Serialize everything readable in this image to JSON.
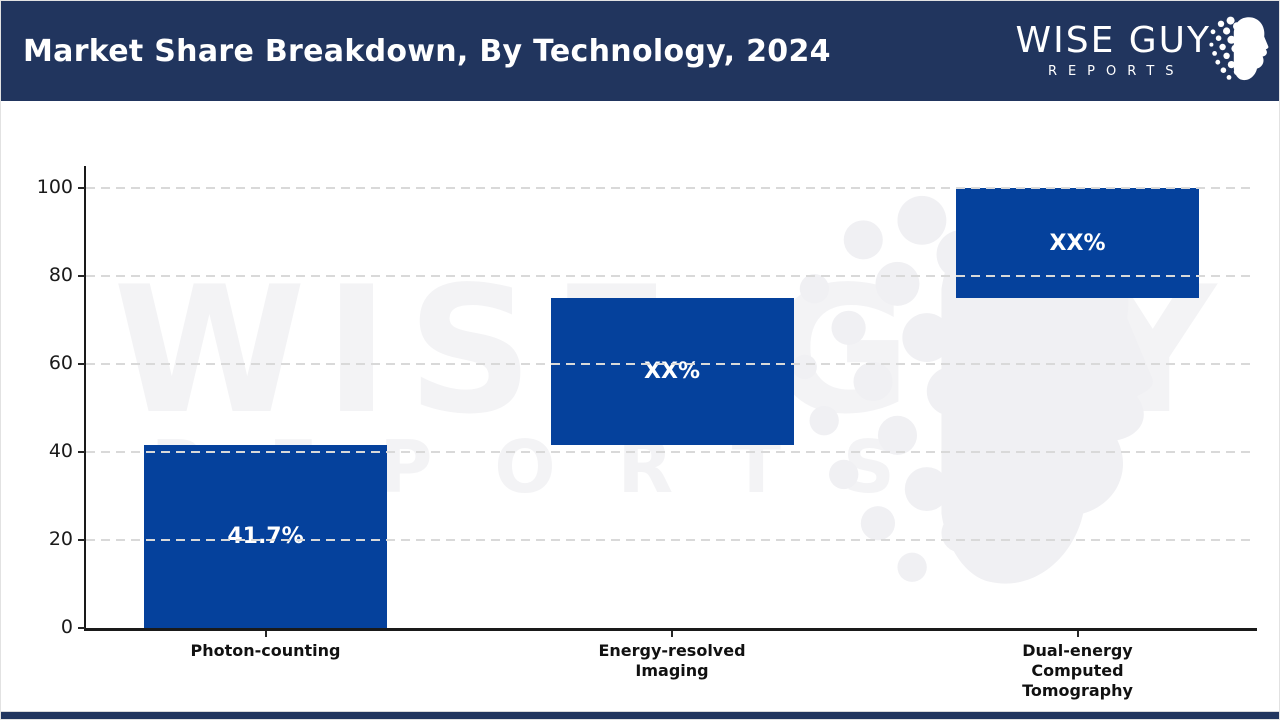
{
  "header": {
    "title": "Market Share Breakdown, By Technology, 2024",
    "logo": {
      "line1": "WISE GUY",
      "line2": "REPORTS"
    }
  },
  "watermark": {
    "line1": "WISE GUY",
    "line2": "REPORTS"
  },
  "colors": {
    "header_bg": "#21355E",
    "bar_blue": "#05419C",
    "gridline": "#d9d9d9",
    "axis": "#1a1a1a",
    "title_text": "#ffffff",
    "watermark": "#f3f3f5"
  },
  "chart_data": {
    "type": "bar",
    "subtype": "waterfall",
    "title": "Market Share Breakdown, By Technology, 2024",
    "categories": [
      "Photon-counting",
      "Energy-resolved\nImaging",
      "Dual-energy\nComputed\nTomography"
    ],
    "bars": [
      {
        "category": "Photon-counting",
        "start": 0,
        "end": 41.7,
        "label": "41.7%"
      },
      {
        "category": "Energy-resolved\nImaging",
        "start": 41.7,
        "end": 75,
        "label": "XX%"
      },
      {
        "category": "Dual-energy\nComputed\nTomography",
        "start": 75,
        "end": 100,
        "label": "XX%"
      }
    ],
    "ylim": [
      0,
      100
    ],
    "yticks": [
      0,
      20,
      40,
      60,
      80,
      100
    ],
    "xlabel": "",
    "ylabel": "",
    "grid": "horizontal-dashed",
    "legend": "none",
    "bar_color": "#05419C"
  }
}
